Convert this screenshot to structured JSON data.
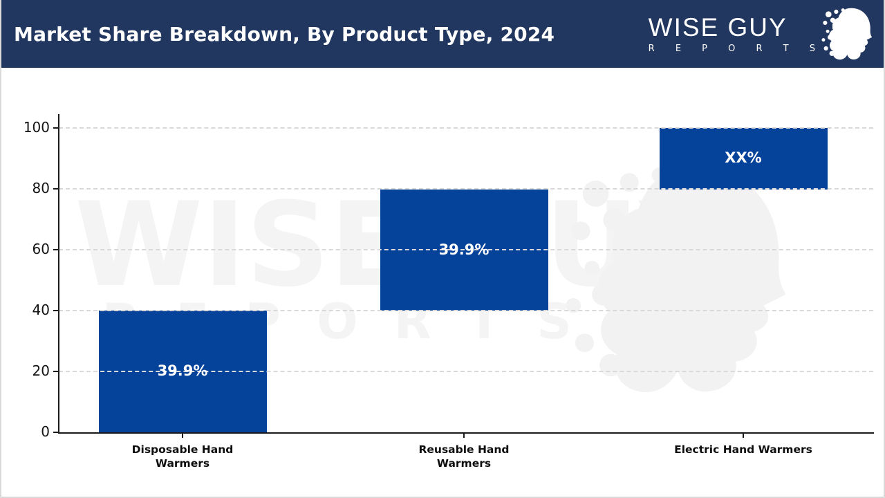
{
  "header": {
    "title": "Market Share Breakdown, By Product Type, 2024",
    "brand_line1": "WISE GUY",
    "brand_line2": "R E P O R T S"
  },
  "watermark": {
    "line1": "WISE GUY",
    "line2": "R E P O R T S"
  },
  "chart_data": {
    "type": "bar",
    "subtype": "waterfall",
    "title": "Market Share Breakdown, By Product Type, 2024",
    "categories": [
      "Disposable Hand Warmers",
      "Reusable Hand Warmers",
      "Electric Hand Warmers"
    ],
    "values": [
      39.9,
      39.9,
      20.2
    ],
    "cumulative_start": [
      0,
      39.9,
      79.8
    ],
    "cumulative_end": [
      39.9,
      79.8,
      100
    ],
    "bar_labels": [
      "39.9%",
      "39.9%",
      "XX%"
    ],
    "xlabel": "",
    "ylabel": "",
    "ylim": [
      0,
      105
    ],
    "yticks": [
      0,
      20,
      40,
      60,
      80,
      100
    ],
    "grid": "horizontal-dashed",
    "legend": false,
    "bar_color": "#05429a",
    "bar_label_color": "#ffffff"
  },
  "colors": {
    "header_bg": "#21375f",
    "bar": "#05429a",
    "grid": "#d9d9d9",
    "axis": "#1a1a1a",
    "watermark": "#f4f4f4",
    "frame": "#d9d9d9"
  }
}
